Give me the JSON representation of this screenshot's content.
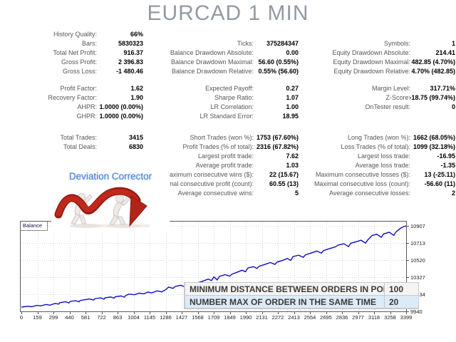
{
  "title": "EURCAD 1 MIN",
  "report": {
    "blocks": [
      {
        "rows": [
          [
            "History Quality:",
            "66%",
            "",
            "",
            "",
            ""
          ],
          [
            "Bars:",
            "5830323",
            "Ticks:",
            "375284347",
            "Symbols:",
            "1"
          ],
          [
            "Total Net Profit:",
            "916.37",
            "Balance Drawdown Absolute:",
            "0.00",
            "Equity Drawdown Absolute:",
            "214.41"
          ],
          [
            "Gross Profit:",
            "2 396.83",
            "Balance Drawdown Maximal:",
            "56.60 (0.55%)",
            "Equity Drawdown Maximal:",
            "482.85 (4.70%)"
          ],
          [
            "Gross Loss:",
            "-1 480.46",
            "Balance Drawdown Relative:",
            "0.55% (56.60)",
            "Equity Drawdown Relative:",
            "4.70% (482.85)"
          ]
        ]
      },
      {
        "rows": [
          [
            "Profit Factor:",
            "1.62",
            "Expected Payoff:",
            "0.27",
            "Margin Level:",
            "317.71%"
          ],
          [
            "Recovery Factor:",
            "1.90",
            "Sharpe Ratio:",
            "1.07",
            "Z-Score:",
            "-18.75 (99.74%)"
          ],
          [
            "AHPR:",
            "1.0000 (0.00%)",
            "LR Correlation:",
            "1.00",
            "OnTester result:",
            "0"
          ],
          [
            "GHPR:",
            "1.0000 (0.00%)",
            "LR Standard Error:",
            "18.95",
            "",
            ""
          ]
        ]
      },
      {
        "rows": [
          [
            "Total Trades:",
            "3415",
            "Short Trades (won %):",
            "1753 (67.60%)",
            "Long Trades (won %):",
            "1662 (68.05%)"
          ],
          [
            "Total Deals:",
            "6830",
            "Profit Trades (% of total):",
            "2316 (67.82%)",
            "Loss Trades (% of total):",
            "1099 (32.18%)"
          ],
          [
            "",
            "",
            "Largest profit trade:",
            "7.62",
            "Largest loss trade:",
            "-16.95"
          ],
          [
            "",
            "",
            "Average profit trade:",
            "1.03",
            "Average loss trade:",
            "-1.35"
          ],
          [
            "",
            "",
            "Maximum consecutive wins ($):",
            "22 (15.67)",
            "Maximum consecutive losses ($):",
            "13 (-25.11)"
          ],
          [
            "",
            "",
            "Maximal consecutive profit (count):",
            "60.55 (13)",
            "Maximal consecutive loss (count):",
            "-56.60 (11)"
          ],
          [
            "",
            "",
            "Average consecutive wins:",
            "5",
            "Average consecutive losses:",
            "2"
          ]
        ]
      }
    ]
  },
  "watermark": {
    "label": "Deviation Corrector"
  },
  "param_overlay": {
    "rows": [
      {
        "name": "MINIMUM DISTANCE BETWEEN ORDERS IN POINT",
        "value": "100"
      },
      {
        "name": "NUMBER MAX OF ORDER IN THE SAME TIME",
        "value": "20"
      }
    ]
  },
  "chart_data": {
    "type": "line",
    "title": "Balance",
    "legend_label": "Balance",
    "xlabel": "",
    "ylabel": "",
    "xlim": [
      0,
      3399
    ],
    "ylim": [
      9940,
      10907
    ],
    "grid": true,
    "line_color": "#0d0dc4",
    "x_ticks": [
      0,
      159,
      299,
      440,
      581,
      722,
      863,
      1004,
      1145,
      1286,
      1427,
      1568,
      1709,
      1849,
      1990,
      2131,
      2272,
      2413,
      2554,
      2695,
      2836,
      2977,
      3118,
      3258,
      3399
    ],
    "y_ticks": [
      9940,
      10134,
      10327,
      10520,
      10713,
      10907
    ],
    "series": [
      {
        "name": "Balance",
        "points": [
          [
            0,
            9988
          ],
          [
            60,
            9998
          ],
          [
            90,
            9992
          ],
          [
            140,
            10008
          ],
          [
            170,
            10002
          ],
          [
            220,
            10018
          ],
          [
            250,
            10010
          ],
          [
            300,
            10030
          ],
          [
            330,
            10022
          ],
          [
            340,
            10038
          ],
          [
            390,
            10048
          ],
          [
            420,
            10035
          ],
          [
            430,
            10052
          ],
          [
            480,
            10060
          ],
          [
            510,
            10048
          ],
          [
            520,
            10064
          ],
          [
            570,
            10074
          ],
          [
            600,
            10080
          ],
          [
            640,
            10068
          ],
          [
            650,
            10084
          ],
          [
            700,
            10092
          ],
          [
            730,
            10078
          ],
          [
            740,
            10094
          ],
          [
            790,
            10102
          ],
          [
            820,
            10090
          ],
          [
            830,
            10106
          ],
          [
            880,
            10114
          ],
          [
            910,
            10100
          ],
          [
            920,
            10118
          ],
          [
            950,
            10135
          ],
          [
            1000,
            10128
          ],
          [
            1040,
            10146
          ],
          [
            1080,
            10138
          ],
          [
            1120,
            10158
          ],
          [
            1150,
            10148
          ],
          [
            1200,
            10172
          ],
          [
            1240,
            10160
          ],
          [
            1280,
            10190
          ],
          [
            1300,
            10215
          ],
          [
            1340,
            10200
          ],
          [
            1360,
            10222
          ],
          [
            1410,
            10235
          ],
          [
            1440,
            10218
          ],
          [
            1450,
            10240
          ],
          [
            1500,
            10255
          ],
          [
            1540,
            10238
          ],
          [
            1550,
            10260
          ],
          [
            1600,
            10280
          ],
          [
            1650,
            10305
          ],
          [
            1680,
            10288
          ],
          [
            1700,
            10330
          ],
          [
            1730,
            10296
          ],
          [
            1750,
            10335
          ],
          [
            1800,
            10355
          ],
          [
            1840,
            10338
          ],
          [
            1860,
            10360
          ],
          [
            1910,
            10385
          ],
          [
            1950,
            10405
          ],
          [
            1980,
            10388
          ],
          [
            2000,
            10430
          ],
          [
            2050,
            10445
          ],
          [
            2080,
            10425
          ],
          [
            2100,
            10450
          ],
          [
            2150,
            10470
          ],
          [
            2200,
            10492
          ],
          [
            2240,
            10472
          ],
          [
            2260,
            10498
          ],
          [
            2310,
            10518
          ],
          [
            2350,
            10538
          ],
          [
            2380,
            10515
          ],
          [
            2400,
            10560
          ],
          [
            2450,
            10575
          ],
          [
            2490,
            10552
          ],
          [
            2510,
            10580
          ],
          [
            2560,
            10600
          ],
          [
            2610,
            10622
          ],
          [
            2650,
            10600
          ],
          [
            2670,
            10628
          ],
          [
            2720,
            10648
          ],
          [
            2770,
            10668
          ],
          [
            2800,
            10690
          ],
          [
            2850,
            10705
          ],
          [
            2890,
            10672
          ],
          [
            2910,
            10710
          ],
          [
            2960,
            10728
          ],
          [
            3000,
            10745
          ],
          [
            3040,
            10712
          ],
          [
            3060,
            10748
          ],
          [
            3100,
            10800
          ],
          [
            3140,
            10812
          ],
          [
            3180,
            10778
          ],
          [
            3200,
            10815
          ],
          [
            3250,
            10835
          ],
          [
            3290,
            10800
          ],
          [
            3310,
            10840
          ],
          [
            3350,
            10880
          ],
          [
            3380,
            10900
          ],
          [
            3399,
            10907
          ]
        ]
      }
    ]
  }
}
